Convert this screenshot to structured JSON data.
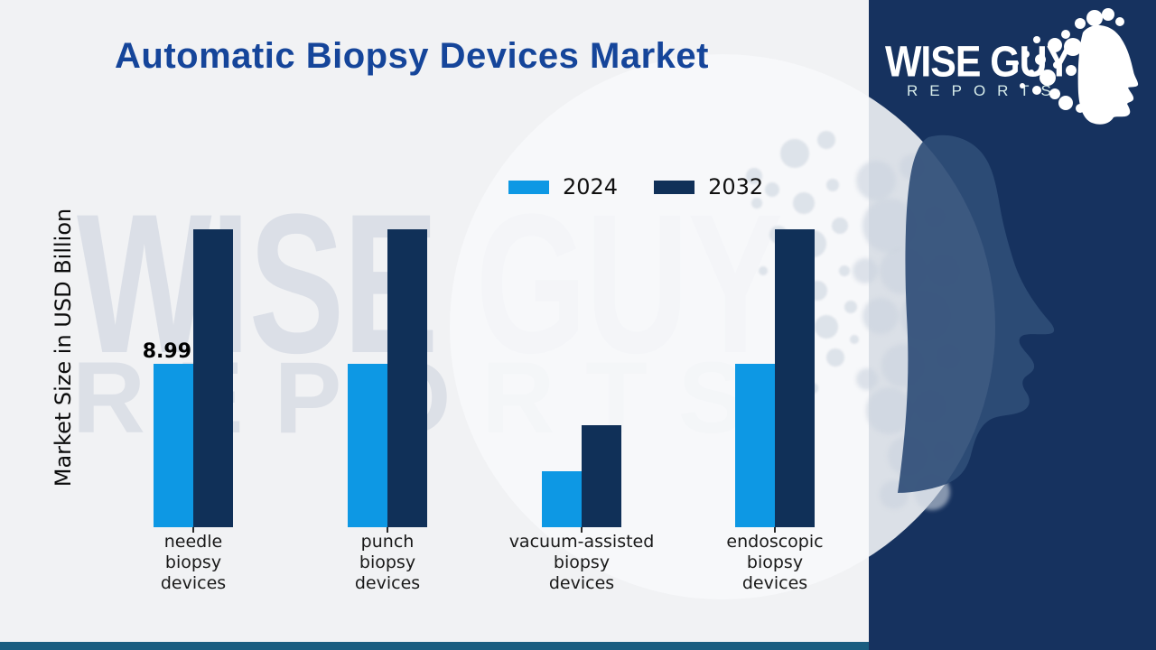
{
  "title": "Automatic Biopsy Devices Market",
  "ylabel": "Market Size in USD Billion",
  "watermark": {
    "line1": "WISE GUY",
    "line2": "REPORTS"
  },
  "logo": {
    "line1": "WISE GUY",
    "line2": "REPORTS"
  },
  "colors": {
    "accent_blue_2024": "#0d98e4",
    "navy_2032": "#103058",
    "title_blue": "#15459a",
    "brand_panel_navy": "#16325f",
    "footer_teal": "#1a5d80",
    "background": "#f1f2f4"
  },
  "chart_data": {
    "type": "bar",
    "title": "Automatic Biopsy Devices Market",
    "xlabel": "",
    "ylabel": "Market Size in USD Billion",
    "categories": [
      "needle biopsy devices",
      "punch biopsy devices",
      "vacuum-assisted biopsy devices",
      "endoscopic biopsy devices"
    ],
    "series": [
      {
        "name": "2024",
        "color": "#0d98e4",
        "values": [
          8.99,
          9.0,
          3.1,
          9.0
        ]
      },
      {
        "name": "2032",
        "color": "#103058",
        "values": [
          16.4,
          16.4,
          5.6,
          16.4
        ]
      }
    ],
    "data_labels": [
      {
        "series": "2024",
        "category_index": 0,
        "text": "8.99"
      }
    ],
    "legend_position": "top",
    "grid": false,
    "ylim": [
      0,
      18
    ]
  }
}
